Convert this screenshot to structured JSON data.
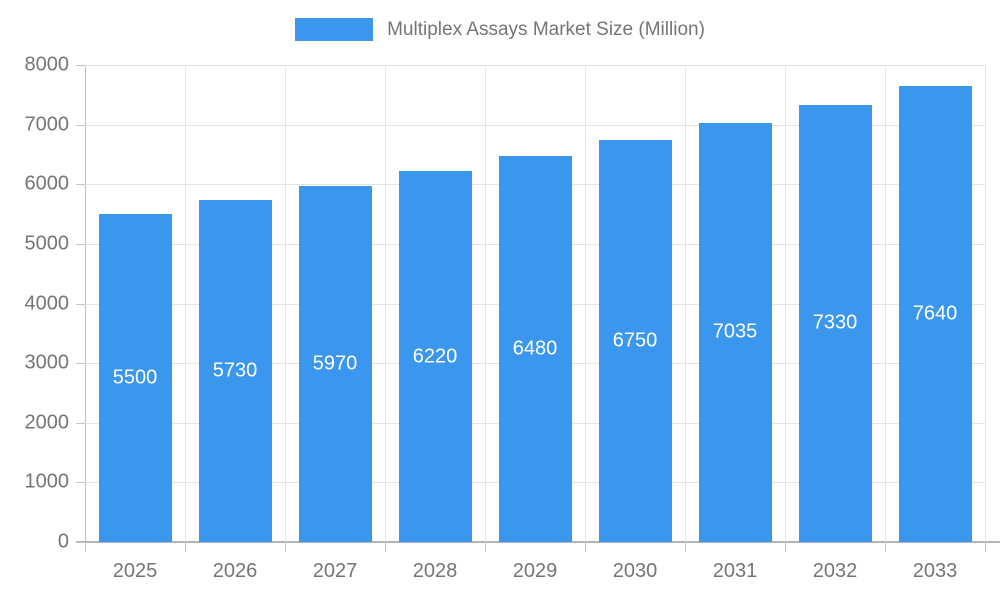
{
  "legend": {
    "label": "Multiplex Assays Market Size (Million)"
  },
  "colors": {
    "bar": "#3b97ee",
    "axis_text": "#757575",
    "bar_label_text": "#ffffff",
    "gridline": "#e3e3e3",
    "axis_line": "#b3b3b3"
  },
  "chart_data": {
    "type": "bar",
    "title": "Multiplex Assays Market Size (Million)",
    "categories": [
      "2025",
      "2026",
      "2027",
      "2028",
      "2029",
      "2030",
      "2031",
      "2032",
      "2033"
    ],
    "values": [
      5500,
      5730,
      5970,
      6220,
      6480,
      6750,
      7035,
      7330,
      7640
    ],
    "bar_labels": [
      "5500",
      "5730",
      "5970",
      "6220",
      "6480",
      "6750",
      "7035",
      "7330",
      "7640"
    ],
    "xlabel": "",
    "ylabel": "",
    "ylim": [
      0,
      8000
    ],
    "yticks": [
      0,
      1000,
      2000,
      3000,
      4000,
      5000,
      6000,
      7000,
      8000
    ],
    "grid": true,
    "legend_position": "top"
  }
}
